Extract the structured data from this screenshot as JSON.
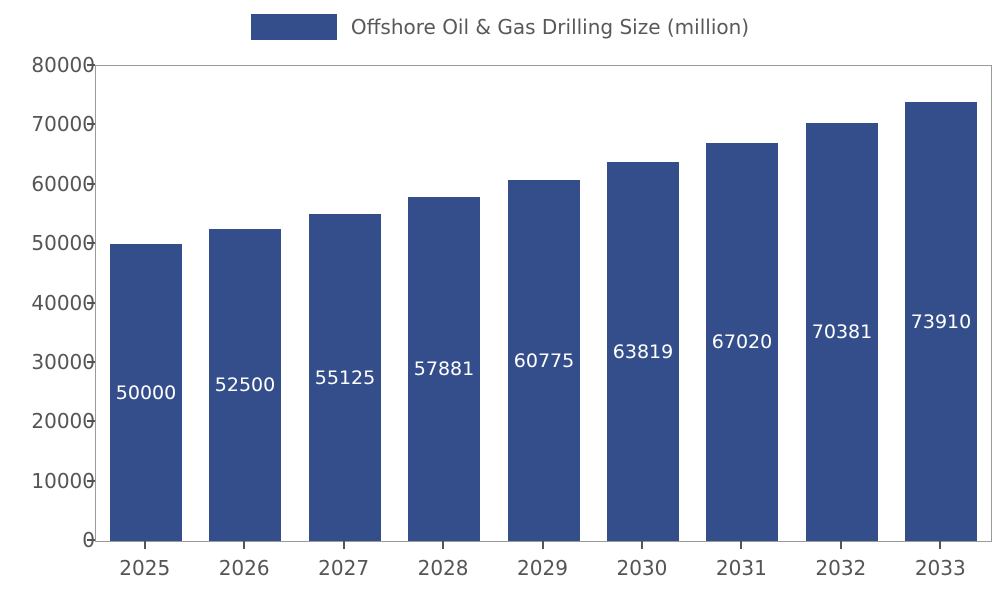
{
  "chart_data": {
    "type": "bar",
    "title": "Offshore Oil & Gas Drilling Size (million)",
    "categories": [
      "2025",
      "2026",
      "2027",
      "2028",
      "2029",
      "2030",
      "2031",
      "2032",
      "2033"
    ],
    "values": [
      50000,
      52500,
      55125,
      57881,
      60775,
      63819,
      67020,
      70381,
      73910
    ],
    "bar_value_labels": [
      "50000",
      "52500",
      "55125",
      "57881",
      "60775",
      "63819",
      "67020",
      "70381",
      "73910"
    ],
    "xlabel": "",
    "ylabel": "",
    "ylim": [
      0,
      80000
    ],
    "yticks": [
      "0",
      "10000",
      "20000",
      "30000",
      "40000",
      "50000",
      "60000",
      "70000",
      "80000"
    ],
    "grid": false,
    "legend_position": "top",
    "colors": {
      "bar": "#344e8b",
      "bar_label_text": "#ffffff",
      "axis_text": "#555555",
      "legend_text": "#595959",
      "spine": "#9a9a9a"
    }
  }
}
